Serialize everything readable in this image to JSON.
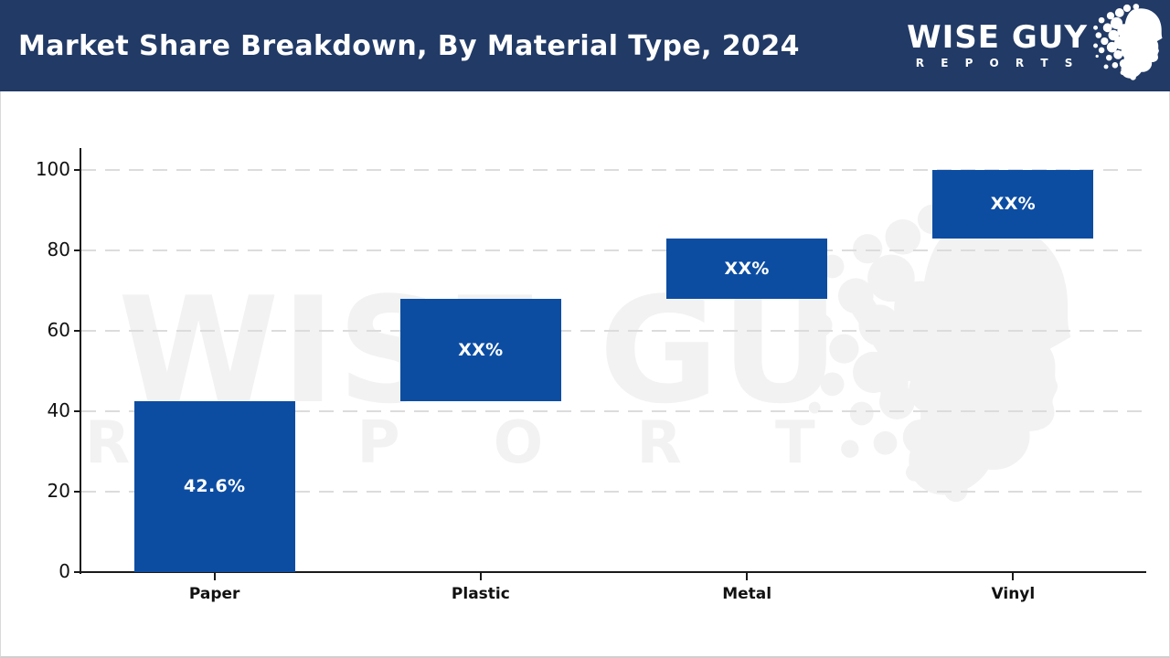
{
  "header": {
    "title": "Market Share Breakdown, By Material Type, 2024",
    "logo": {
      "line1": "WISE GUY",
      "line2": "R E P O R T S"
    }
  },
  "watermark": {
    "line1": "WISE GUY",
    "line2": "R E P O R T S"
  },
  "colors": {
    "header_bg": "#213a66",
    "bar": "#0c4da2",
    "bar_label": "#ffffff",
    "grid": "#dcdcdc",
    "axis": "#1a1a1a",
    "tick_text": "#111111",
    "watermark": "#f2f2f2"
  },
  "chart_data": {
    "type": "bar",
    "subtype": "waterfall",
    "title": "Market Share Breakdown, By Material Type, 2024",
    "categories": [
      "Paper",
      "Plastic",
      "Metal",
      "Vinyl"
    ],
    "segments": [
      {
        "category": "Paper",
        "start": 0,
        "end": 42.6,
        "label": "42.6%"
      },
      {
        "category": "Plastic",
        "start": 42.6,
        "end": 68.0,
        "label": "XX%"
      },
      {
        "category": "Metal",
        "start": 68.0,
        "end": 83.0,
        "label": "XX%"
      },
      {
        "category": "Vinyl",
        "start": 83.0,
        "end": 100.0,
        "label": "XX%"
      }
    ],
    "xlabel": "",
    "ylabel": "",
    "ylim": [
      0,
      100
    ],
    "yticks": [
      0,
      20,
      40,
      60,
      80,
      100
    ],
    "grid": "horizontal-dashed",
    "legend": "none",
    "bar_color": "#0c4da2",
    "value_label_color": "#ffffff"
  }
}
